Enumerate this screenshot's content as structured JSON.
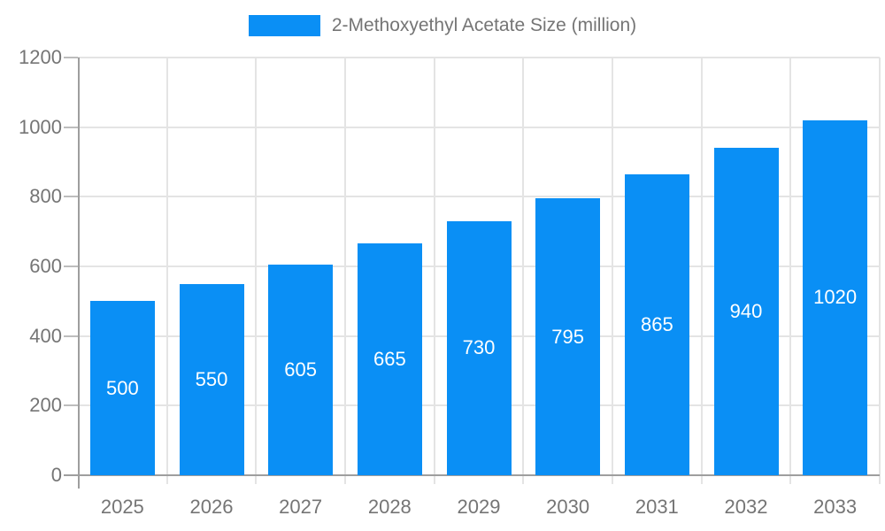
{
  "legend": {
    "label": "2-Methoxyethyl Acetate Size (million)",
    "swatch_color": "#0a8ff5"
  },
  "chart_data": {
    "type": "bar",
    "title": "",
    "xlabel": "",
    "ylabel": "",
    "categories": [
      "2025",
      "2026",
      "2027",
      "2028",
      "2029",
      "2030",
      "2031",
      "2032",
      "2033"
    ],
    "series": [
      {
        "name": "2-Methoxyethyl Acetate Size (million)",
        "values": [
          500,
          550,
          605,
          665,
          730,
          795,
          865,
          940,
          1020
        ]
      }
    ],
    "data_labels_shown": true,
    "ylim": [
      0,
      1200
    ],
    "yticks": [
      0,
      200,
      400,
      600,
      800,
      1000,
      1200
    ],
    "grid": true,
    "legend_position": "top-center",
    "bar_color": "#0a8ff5",
    "bar_label_color": "#ffffff",
    "axis_line_color": "#9e9e9e",
    "grid_color": "#e4e4e4",
    "tick_color": "#bdbdbd",
    "axis_text_color": "#757575",
    "background_color": "#ffffff"
  }
}
